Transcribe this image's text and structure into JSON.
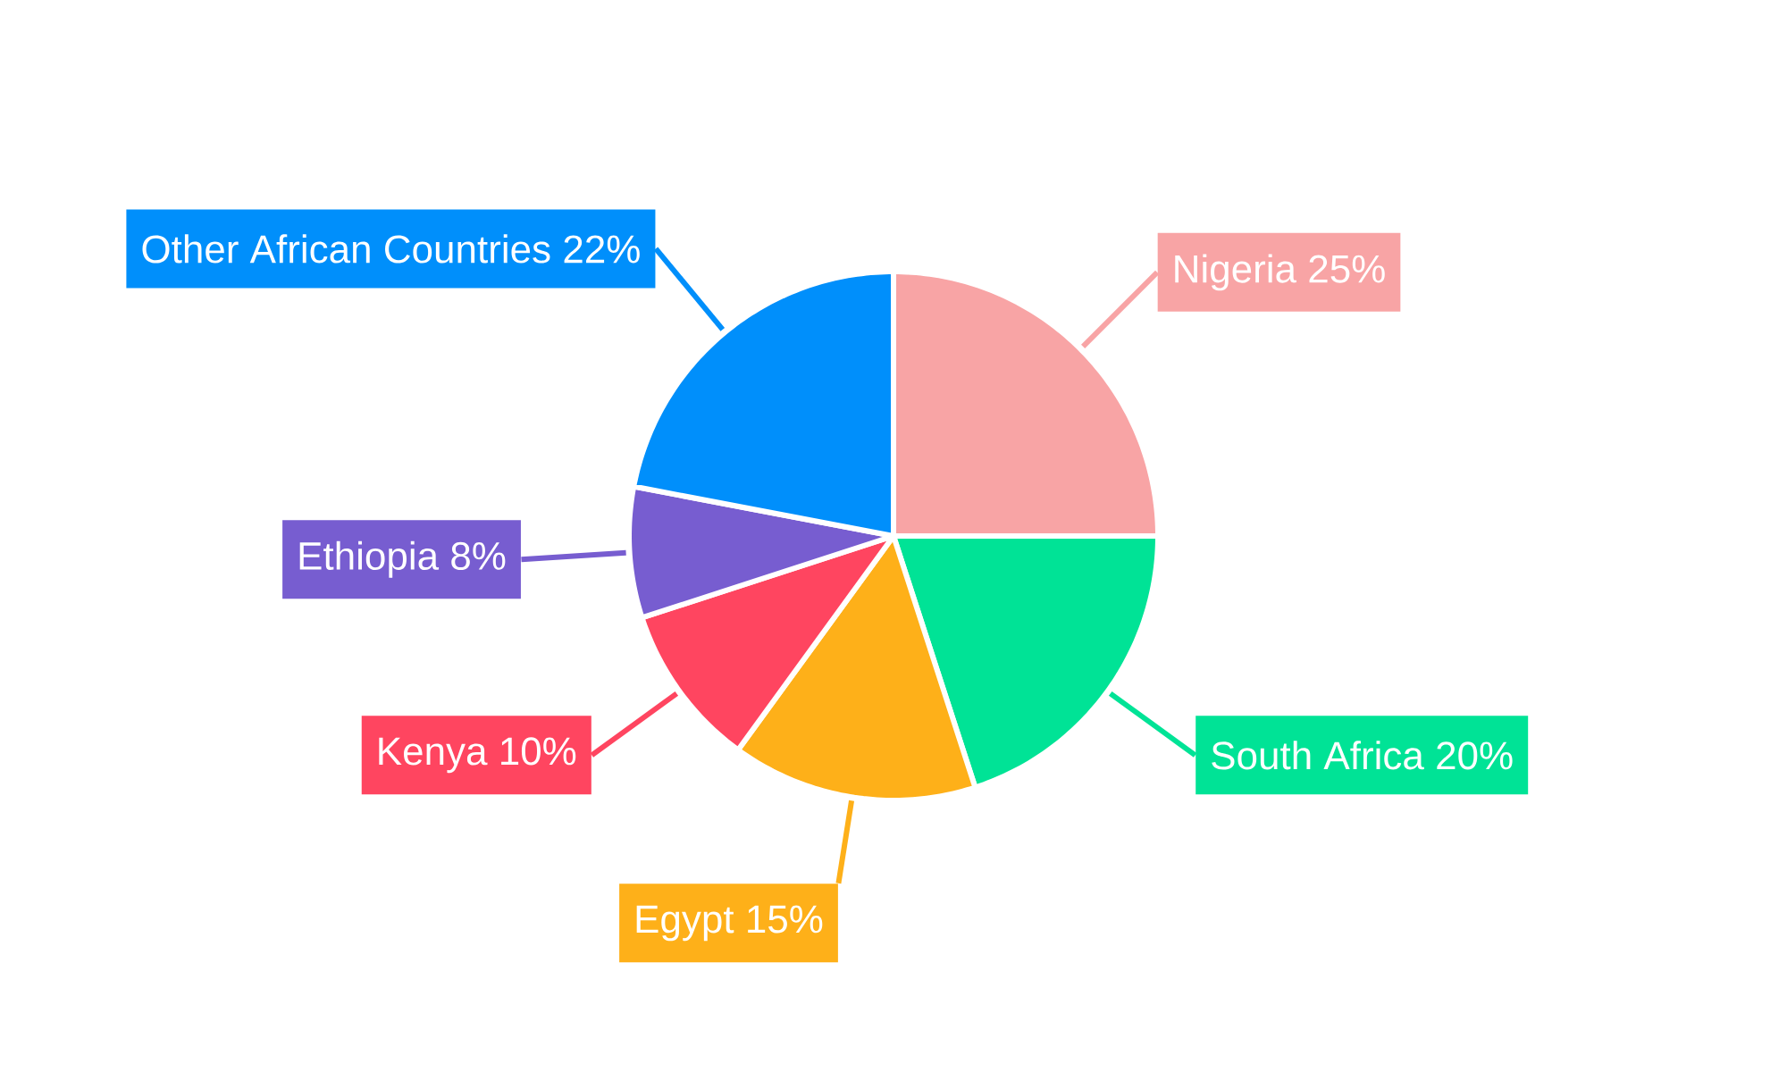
{
  "chart_data": {
    "type": "pie",
    "categories": [
      "Nigeria",
      "South Africa",
      "Egypt",
      "Kenya",
      "Ethiopia",
      "Other African Countries"
    ],
    "values": [
      25,
      20,
      15,
      10,
      8,
      22
    ],
    "colors": [
      "#f8a4a5",
      "#00e396",
      "#feb019",
      "#ff4560",
      "#775dd0",
      "#008ffb"
    ],
    "value_labels": [
      "25%",
      "20%",
      "15%",
      "10%",
      "8%",
      "22%"
    ]
  }
}
